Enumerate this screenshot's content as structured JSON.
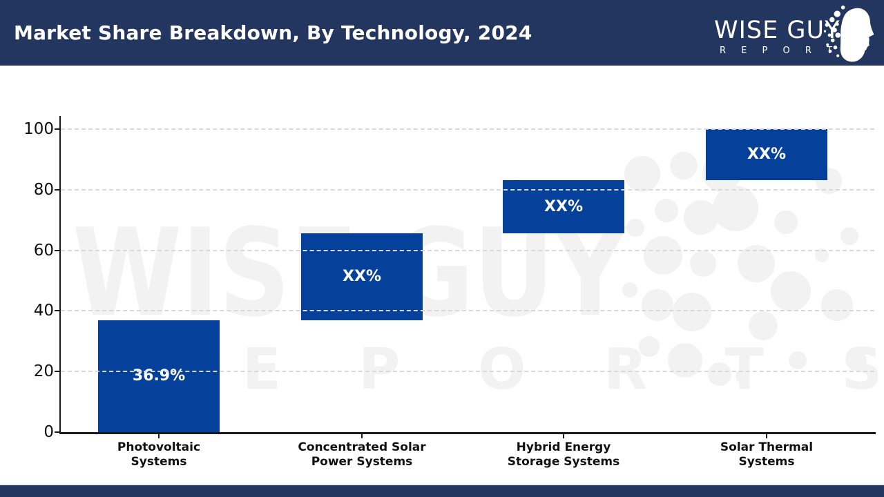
{
  "header": {
    "title": "Market Share Breakdown, By Technology, 2024",
    "logo": {
      "line1": "WISE GUY",
      "line2": "R E P O R T S"
    }
  },
  "watermark": {
    "line1": "WISE GUY",
    "line2": "R E P O R T S"
  },
  "colors": {
    "header_navy": "#22365f",
    "bar_blue": "#05419b",
    "gridline_gray": "#d9d9d9",
    "axis_black": "#1a1a1a",
    "watermark_gray": "#f2f2f2",
    "bar_label_white": "#ffffff"
  },
  "chart_data": {
    "type": "bar",
    "subtype": "floating-waterfall",
    "title": "Market Share Breakdown, By Technology, 2024",
    "categories": [
      "Photovoltaic\nSystems",
      "Concentrated Solar\nPower Systems",
      "Hybrid Energy\nStorage Systems",
      "Solar Thermal\nSystems"
    ],
    "series": [
      {
        "name": "Market Share",
        "segments": [
          {
            "category": "Photovoltaic Systems",
            "start": 0,
            "end": 36.9,
            "label": "36.9%"
          },
          {
            "category": "Concentrated Solar Power Systems",
            "start": 36.9,
            "end": 65.7,
            "label": "XX%"
          },
          {
            "category": "Hybrid Energy Storage Systems",
            "start": 65.7,
            "end": 83.2,
            "label": "XX%"
          },
          {
            "category": "Solar Thermal Systems",
            "start": 83.2,
            "end": 100,
            "label": "XX%"
          }
        ]
      }
    ],
    "xlabel": "",
    "ylabel": "",
    "ylim": [
      0,
      100
    ],
    "yticks": [
      0,
      20,
      40,
      60,
      80,
      100
    ],
    "grid": "horizontal-dashed",
    "legend": "none"
  }
}
